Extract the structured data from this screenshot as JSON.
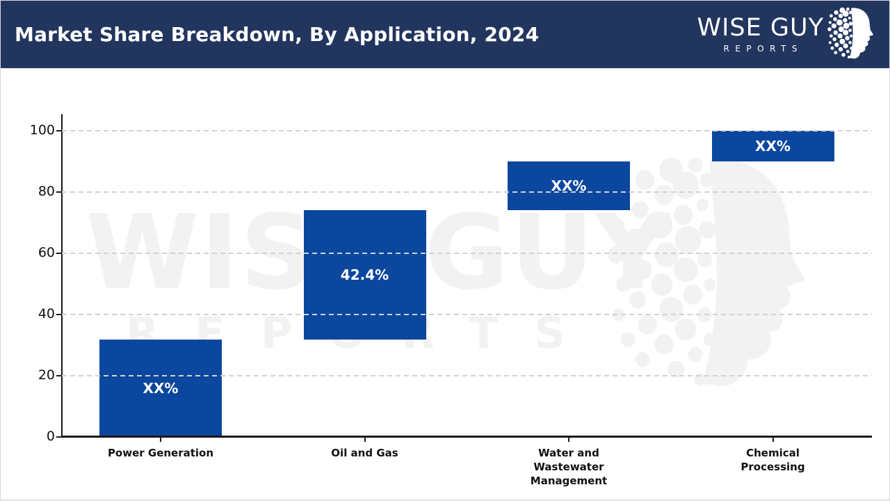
{
  "header": {
    "title": "Market Share Breakdown, By Application, 2024",
    "logo": {
      "line1": "WISE GUY",
      "line2": "REPORTS"
    }
  },
  "watermark": {
    "line1": "WISE GUY",
    "line2": "REPORTS"
  },
  "colors": {
    "header_bg": "#21355e",
    "bar_blue": "#0b479e",
    "axis": "#1a1a1a",
    "gridline": "#d2d2d2",
    "watermark": "#f2f2f2",
    "bar_label": "#ffffff",
    "tick_label": "#111111"
  },
  "chart_data": {
    "type": "bar",
    "variant": "waterfall-floating-bars",
    "title": "Market Share Breakdown, By Application, 2024",
    "categories": [
      "Power Generation",
      "Oil and Gas",
      "Water and Wastewater Management",
      "Chemical Processing"
    ],
    "category_label_lines": [
      [
        "Power Generation"
      ],
      [
        "Oil and Gas"
      ],
      [
        "Water and",
        "Wastewater",
        "Management"
      ],
      [
        "Chemical",
        "Processing"
      ]
    ],
    "bars": [
      {
        "category": "Power Generation",
        "start": 0,
        "end": 31.8,
        "value": 31.8,
        "value_label": "XX%"
      },
      {
        "category": "Oil and Gas",
        "start": 31.8,
        "end": 74.2,
        "value": 42.4,
        "value_label": "42.4%"
      },
      {
        "category": "Water and Wastewater Management",
        "start": 74.2,
        "end": 90.1,
        "value": 15.9,
        "value_label": "XX%"
      },
      {
        "category": "Chemical Processing",
        "start": 90.1,
        "end": 100,
        "value": 9.9,
        "value_label": "XX%"
      }
    ],
    "ylim": [
      0,
      100
    ],
    "yticks": [
      0,
      20,
      40,
      60,
      80,
      100
    ],
    "grid": "horizontal-dashed",
    "legend": "none",
    "bar_color": "#0b479e"
  }
}
